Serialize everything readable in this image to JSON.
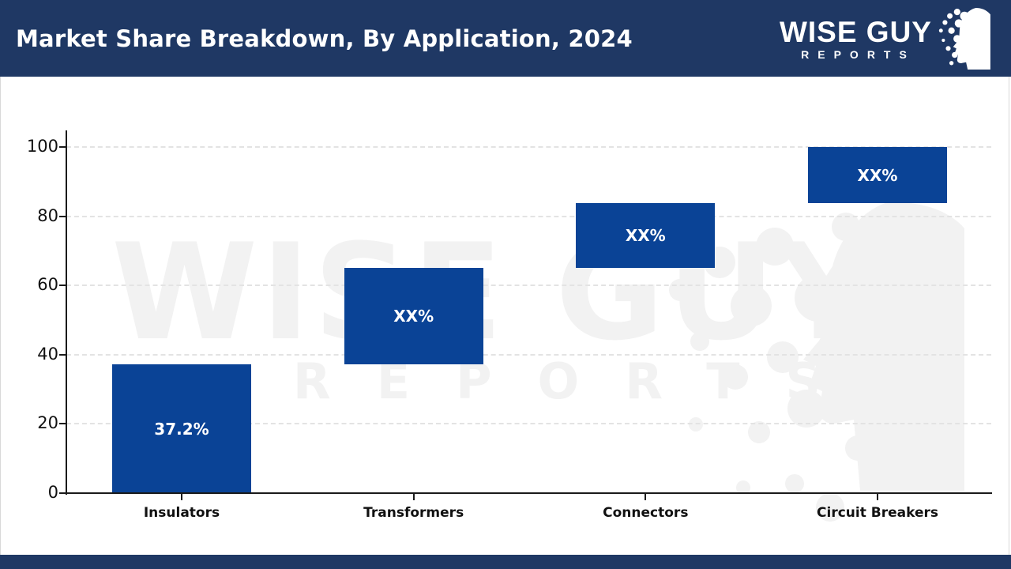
{
  "header": {
    "title": "Market Share Breakdown, By Application, 2024",
    "bg_color": "#1F3864",
    "logo": {
      "line1": "WISE GUY",
      "line2": "REPORTS"
    }
  },
  "watermark": {
    "line1": "WISE GUY",
    "line2": "REPORTS"
  },
  "chart_data": {
    "type": "bar",
    "variant": "stacked-waterfall",
    "title": "Market Share Breakdown, By Application, 2024",
    "categories": [
      "Insulators",
      "Transformers",
      "Connectors",
      "Circuit Breakers"
    ],
    "series": [
      {
        "name": "Insulators",
        "start": 0,
        "end": 37.2,
        "label": "37.2%"
      },
      {
        "name": "Transformers",
        "start": 37.2,
        "end": 65,
        "label": "XX%"
      },
      {
        "name": "Connectors",
        "start": 65,
        "end": 83.7,
        "label": "XX%"
      },
      {
        "name": "Circuit Breakers",
        "start": 83.7,
        "end": 100,
        "label": "XX%"
      }
    ],
    "yticks": [
      0,
      20,
      40,
      60,
      80,
      100
    ],
    "ylim": [
      0,
      105
    ],
    "grid": "horizontal-dashed",
    "legend": "none",
    "bar_color": "#0A4396",
    "bar_label_color": "#FFFFFF",
    "axis_color": "#1A1A1A",
    "grid_color": "#E3E3E3"
  },
  "footer": {
    "bg_color": "#1F3864"
  }
}
